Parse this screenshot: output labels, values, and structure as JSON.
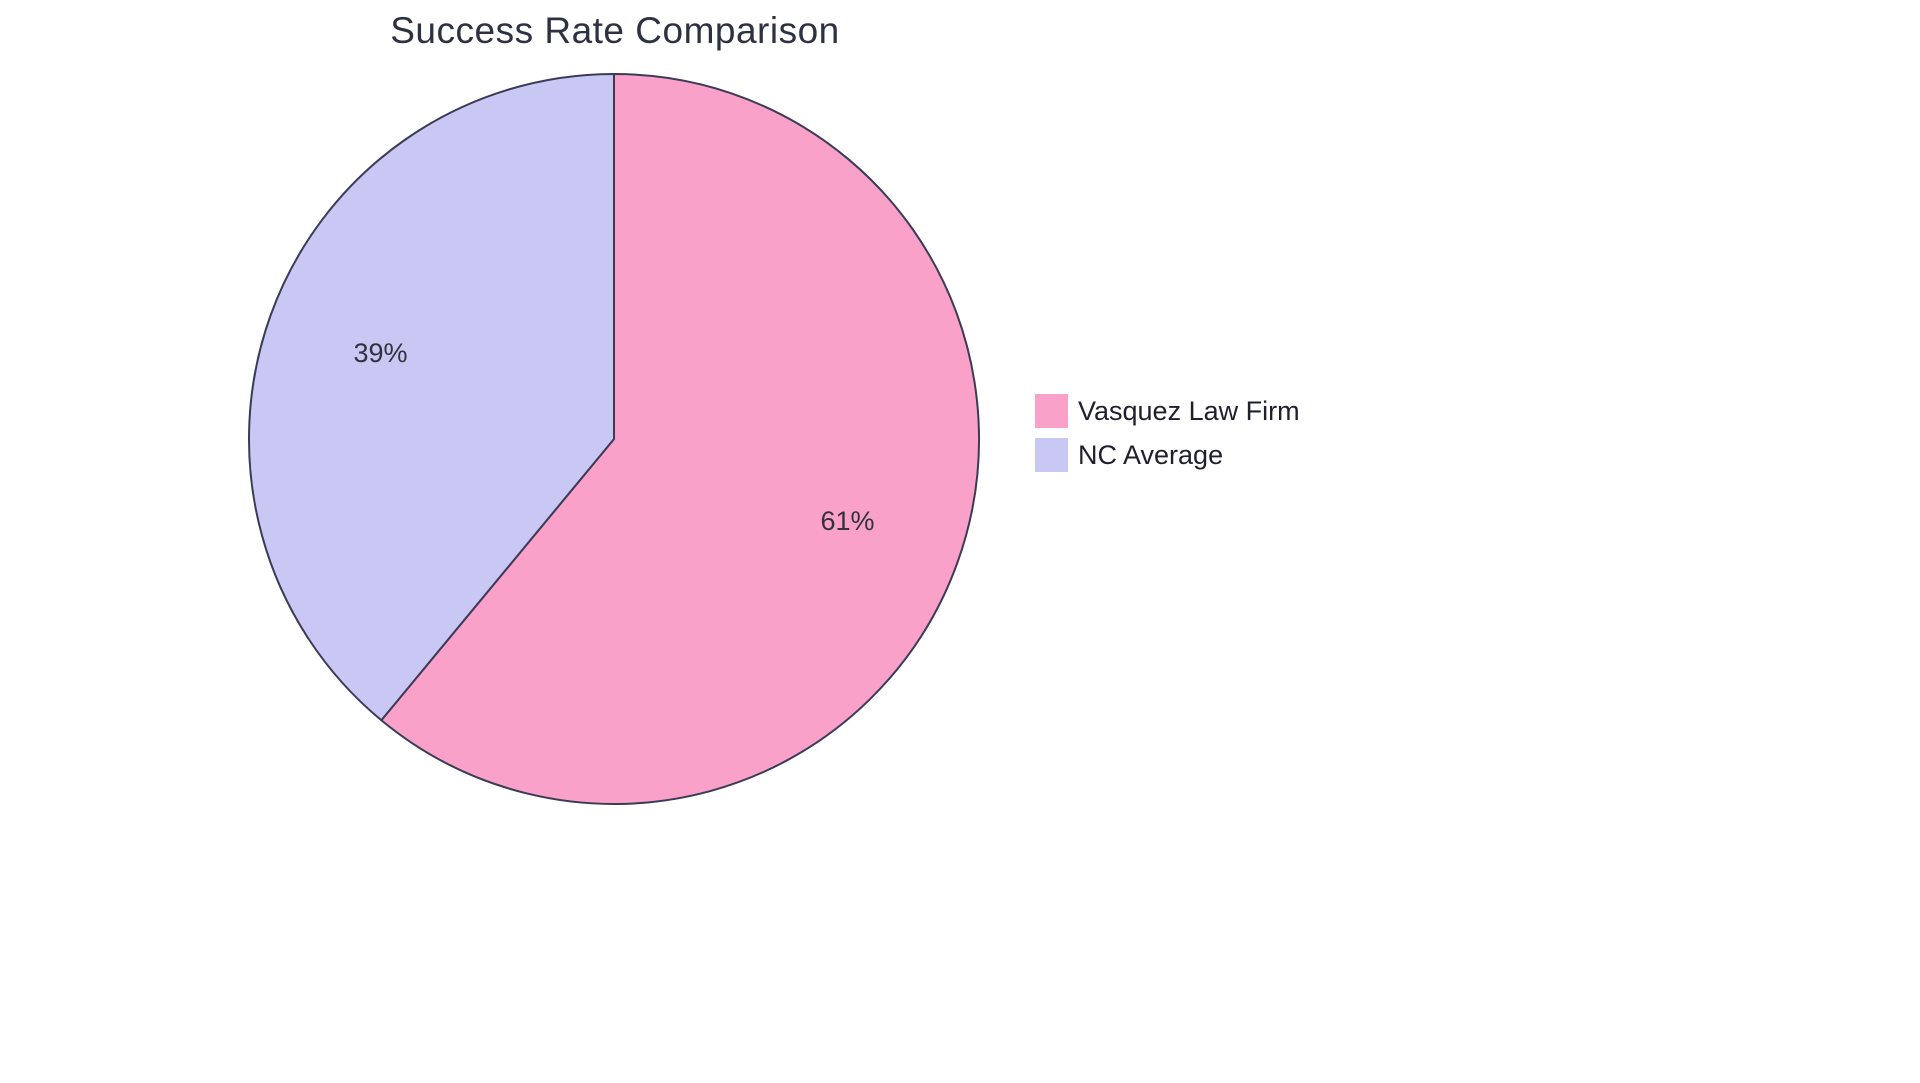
{
  "title": "Success Rate Comparison",
  "colors": {
    "background": "#FFFFFF",
    "stroke": "#3B3B58",
    "title_text": "#2D3142",
    "slice_label_text": "#32323C",
    "legend_text": "#1F1F2E"
  },
  "chart_data": {
    "type": "pie",
    "title": "Success Rate Comparison",
    "slices": [
      {
        "label": "Vasquez Law Firm",
        "value": 61,
        "display": "61%",
        "color": "#F9A1C8"
      },
      {
        "label": "NC Average",
        "value": 39,
        "display": "39%",
        "color": "#C9C8F4"
      }
    ],
    "start_angle_deg": -90,
    "direction": "clockwise",
    "legend_position": "right",
    "labels_inside": true,
    "center": [
      614,
      439
    ],
    "radius": 365,
    "label_radius_ratio": 0.68,
    "label_font_size": 27
  }
}
